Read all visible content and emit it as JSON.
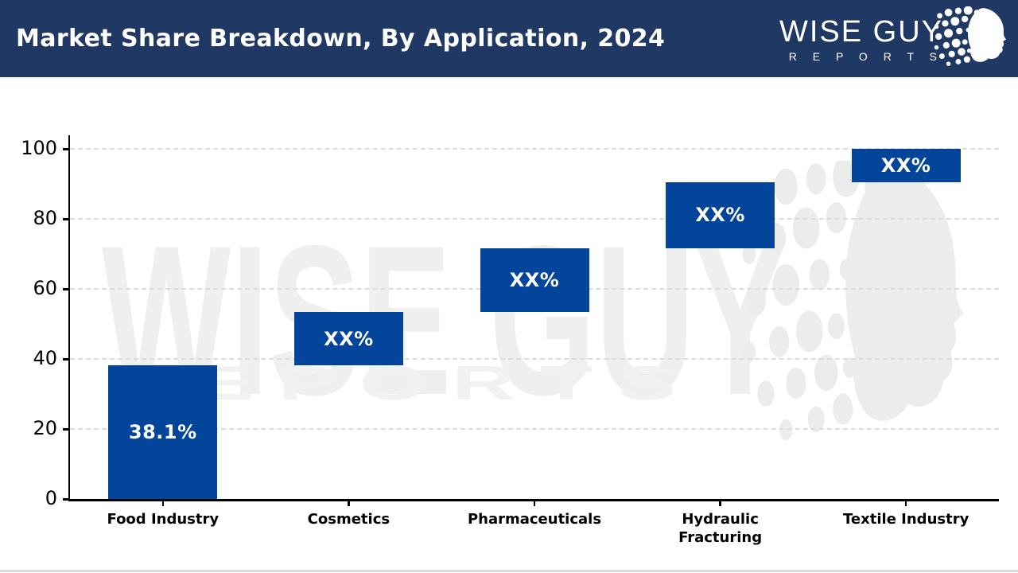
{
  "header": {
    "title": "Market Share Breakdown, By Application, 2024",
    "logo_line1": "WISE GUY",
    "logo_line2": "R E P O R T S"
  },
  "watermark": {
    "line1": "WISE GUY",
    "line2": "R E P O R T S"
  },
  "chart_data": {
    "type": "bar",
    "subtype": "waterfall",
    "title": "Market Share Breakdown, By Application, 2024",
    "categories": [
      "Food Industry",
      "Cosmetics",
      "Pharmaceuticals",
      "Hydraulic Fracturing",
      "Textile Industry"
    ],
    "segments": [
      {
        "category": "Food Industry",
        "start": 0,
        "end": 38.1,
        "label": "38.1%"
      },
      {
        "category": "Cosmetics",
        "start": 38.1,
        "end": 53.4,
        "label": "XX%"
      },
      {
        "category": "Pharmaceuticals",
        "start": 53.4,
        "end": 71.6,
        "label": "XX%"
      },
      {
        "category": "Hydraulic Fracturing",
        "start": 71.6,
        "end": 90.5,
        "label": "XX%"
      },
      {
        "category": "Textile Industry",
        "start": 90.5,
        "end": 100,
        "label": "XX%"
      }
    ],
    "xlabel": "",
    "ylabel": "",
    "yticks": [
      0,
      20,
      40,
      60,
      80,
      100
    ],
    "ylim": [
      0,
      104
    ],
    "grid": "horizontal-dashed",
    "legend": "none",
    "bar_color": "#04459c",
    "bar_label_color": "#ffffff",
    "grid_color": "#dcdcdc",
    "axis_color": "#000000"
  },
  "colors": {
    "header_bg": "#1f3864",
    "header_text": "#ffffff",
    "watermark": "#efefef",
    "bottom_border": "#d9d9d9"
  }
}
